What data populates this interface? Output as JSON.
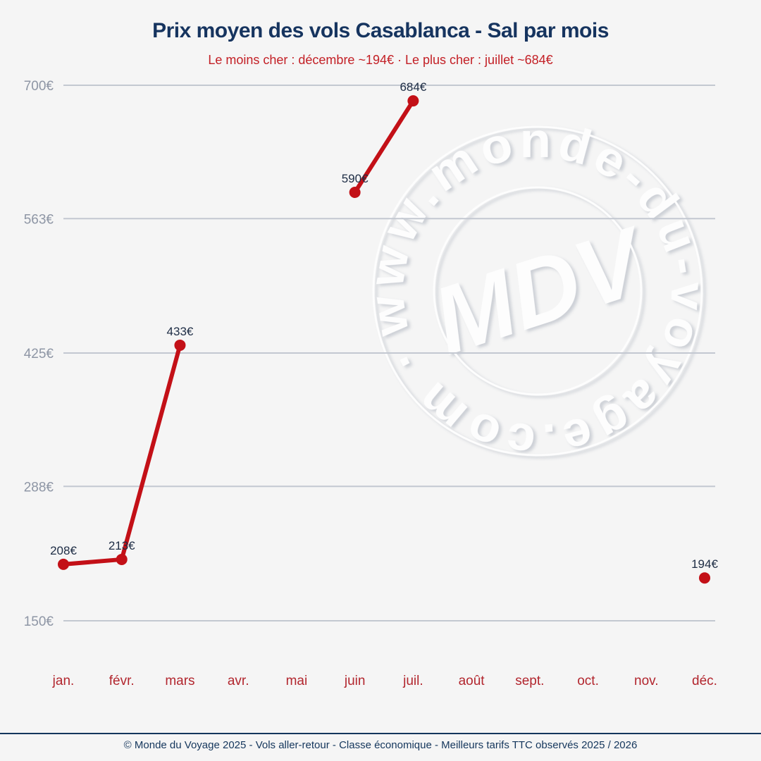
{
  "title": "Prix moyen des vols Casablanca - Sal par mois",
  "subtitle": "Le moins cher : décembre ~194€ · Le plus cher : juillet ~684€",
  "footer": "© Monde du Voyage 2025 - Vols aller-retour - Classe économique - Meilleurs tarifs TTC observés 2025 / 2026",
  "watermark": {
    "circle_text": "www.monde-du-voyage.com ·",
    "center_text": "MDV"
  },
  "colors": {
    "series_red": "#c31017",
    "title_navy": "#16345f",
    "subtitle_red": "#c32026",
    "x_label_red": "#b2262e",
    "y_label_gray": "#8e96a5",
    "gridline_gray": "#c3c8d1",
    "footer_navy": "#14365c",
    "background": "#f5f5f5"
  },
  "chart_data": {
    "type": "line",
    "title": "Prix moyen des vols Casablanca - Sal par mois",
    "categories": [
      "jan.",
      "févr.",
      "mars",
      "avr.",
      "mai",
      "juin",
      "juil.",
      "août",
      "sept.",
      "oct.",
      "nov.",
      "déc."
    ],
    "values": [
      208,
      213,
      433,
      null,
      null,
      590,
      684,
      null,
      null,
      null,
      null,
      194
    ],
    "unit": "€",
    "yticks": [
      700,
      563,
      425,
      288,
      150
    ],
    "ylim": [
      150,
      700
    ],
    "series_color": "#c31017",
    "grid": true,
    "legend": false,
    "annotations": {
      "cheapest_month": "décembre",
      "cheapest_price": 194,
      "most_expensive_month": "juillet",
      "most_expensive_price": 684
    }
  }
}
